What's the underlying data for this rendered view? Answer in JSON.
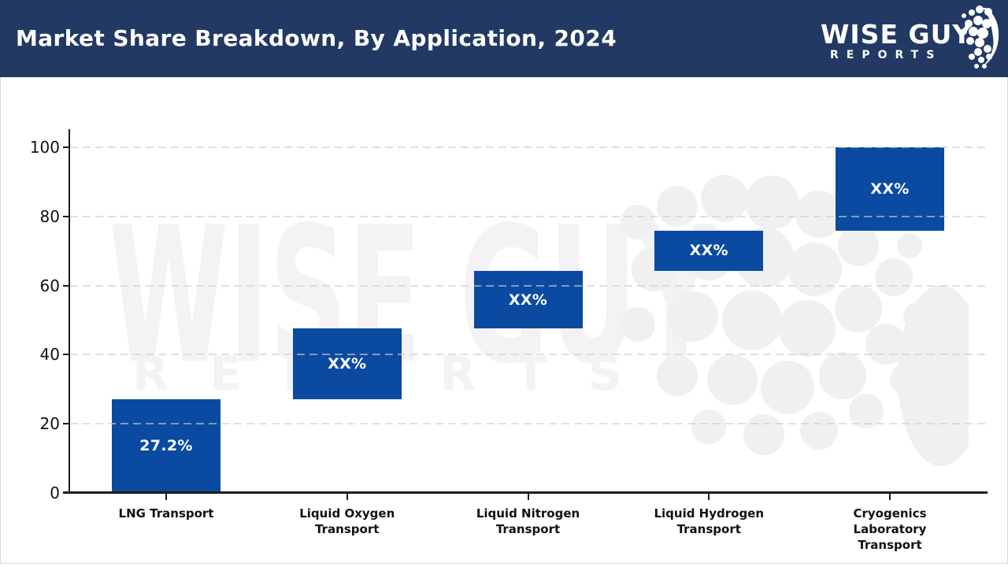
{
  "header": {
    "title": "Market Share Breakdown, By Application, 2024",
    "bg_color": "#223963",
    "logo": {
      "line1": "WISE GUY",
      "line2": "REPORTS"
    }
  },
  "watermark": {
    "line1": "WISE GUY",
    "line2": "REPORTS"
  },
  "chart_data": {
    "type": "waterfall",
    "title": "Market Share Breakdown, By Application, 2024",
    "categories": [
      "LNG Transport",
      "Liquid Oxygen Transport",
      "Liquid Nitrogen Transport",
      "Liquid Hydrogen Transport",
      "Cryogenics Laboratory Transport"
    ],
    "segments": [
      {
        "label": "27.2%",
        "start": 0,
        "end": 27.2
      },
      {
        "label": "XX%",
        "start": 27.2,
        "end": 47.5
      },
      {
        "label": "XX%",
        "start": 47.5,
        "end": 64.3
      },
      {
        "label": "XX%",
        "start": 64.3,
        "end": 75.9
      },
      {
        "label": "XX%",
        "start": 75.9,
        "end": 100
      }
    ],
    "bar_color": "#0b4aa1",
    "yticks": [
      0,
      20,
      40,
      60,
      80,
      100
    ],
    "ylim": [
      0,
      100
    ],
    "xlabel": "",
    "ylabel": "",
    "grid": "horizontal dashed",
    "legend": "none"
  }
}
